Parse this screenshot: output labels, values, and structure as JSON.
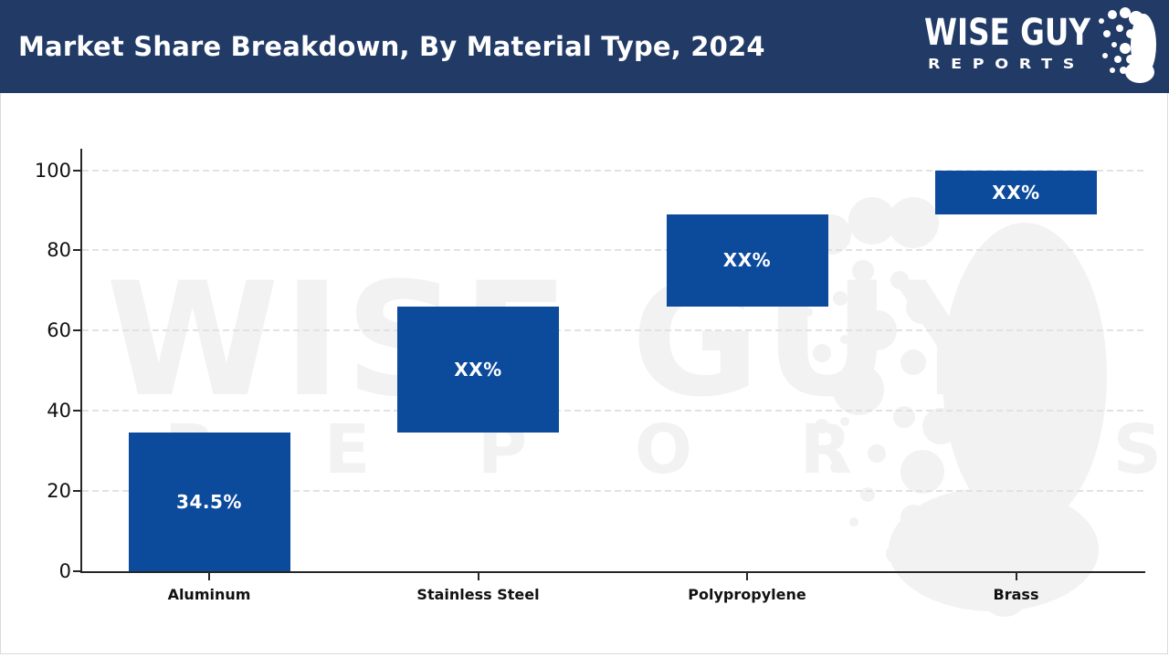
{
  "header": {
    "title": "Market Share Breakdown, By Material Type, 2024",
    "logo": {
      "line1": "WISE GUY",
      "line2": "REPORTS"
    }
  },
  "watermark": {
    "line1": "WISE GUY",
    "line2": "R E P O R T S"
  },
  "colors": {
    "header_bg": "#213A66",
    "bar_blue": "#0C4A9C",
    "axis": "#262626",
    "gridline": "#E2E2E2",
    "watermark_gray": "#F2F2F3"
  },
  "chart_data": {
    "type": "bar",
    "subtype": "waterfall",
    "title": "Market Share Breakdown, By Material Type, 2024",
    "xlabel": "",
    "ylabel": "",
    "categories": [
      "Aluminum",
      "Stainless Steel",
      "Polypropylene",
      "Brass"
    ],
    "segments": [
      {
        "category": "Aluminum",
        "start": 0,
        "end": 34.5,
        "value": 34.5,
        "label": "34.5%"
      },
      {
        "category": "Stainless Steel",
        "start": 34.5,
        "end": 66,
        "value": 31.5,
        "label": "XX%"
      },
      {
        "category": "Polypropylene",
        "start": 66,
        "end": 89,
        "value": 23,
        "label": "XX%"
      },
      {
        "category": "Brass",
        "start": 89,
        "end": 100,
        "value": 11,
        "label": "XX%"
      }
    ],
    "yticks": [
      0,
      20,
      40,
      60,
      80,
      100
    ],
    "ylim": [
      0,
      105
    ],
    "grid": "horizontal-dashed",
    "legend": "none",
    "bar_label_color": "#FFFFFF"
  }
}
